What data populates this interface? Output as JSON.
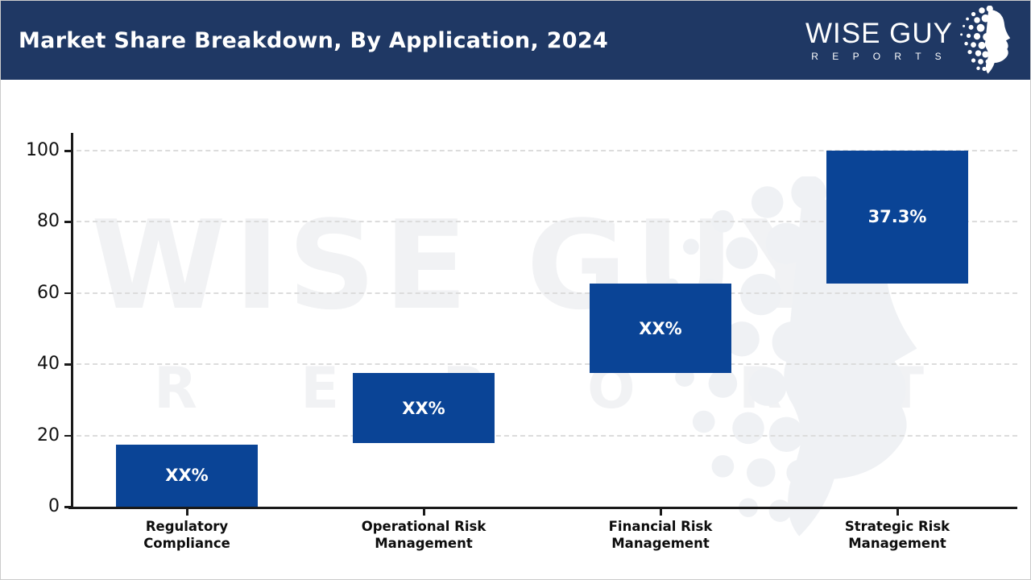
{
  "header": {
    "title": "Market Share Breakdown, By Application, 2024",
    "bg_color": "#1f3864",
    "logo": {
      "wordmark": "WISE GUY",
      "subtext": "R E P O R T S"
    }
  },
  "watermark": {
    "wordmark": "WISE GUY",
    "subtext": "R E P O R T S"
  },
  "chart_data": {
    "type": "bar",
    "subtype": "waterfall-floating-bars",
    "title": "Market Share Breakdown, By Application, 2024",
    "categories": [
      "Regulatory\nCompliance",
      "Operational Risk\nManagement",
      "Financial Risk\nManagement",
      "Strategic Risk\nManagement"
    ],
    "segments": [
      {
        "category": "Regulatory Compliance",
        "start": 0,
        "end": 17.5,
        "label": "XX%"
      },
      {
        "category": "Operational Risk Management",
        "start": 17.8,
        "end": 37.5,
        "label": "XX%"
      },
      {
        "category": "Financial Risk Management",
        "start": 37.5,
        "end": 62.7,
        "label": "XX%"
      },
      {
        "category": "Strategic Risk Management",
        "start": 62.7,
        "end": 100,
        "label": "37.3%"
      }
    ],
    "xlabel": "",
    "ylabel": "",
    "ylim": [
      0,
      100
    ],
    "yticks": [
      0,
      20,
      40,
      60,
      80,
      100
    ],
    "grid": "horizontal-dashed",
    "legend": "none",
    "bar_color": "#0a4496",
    "bar_label_color": "#ffffff",
    "axis_color": "#1a1a1a",
    "gridline_color": "#dcdcdc"
  }
}
